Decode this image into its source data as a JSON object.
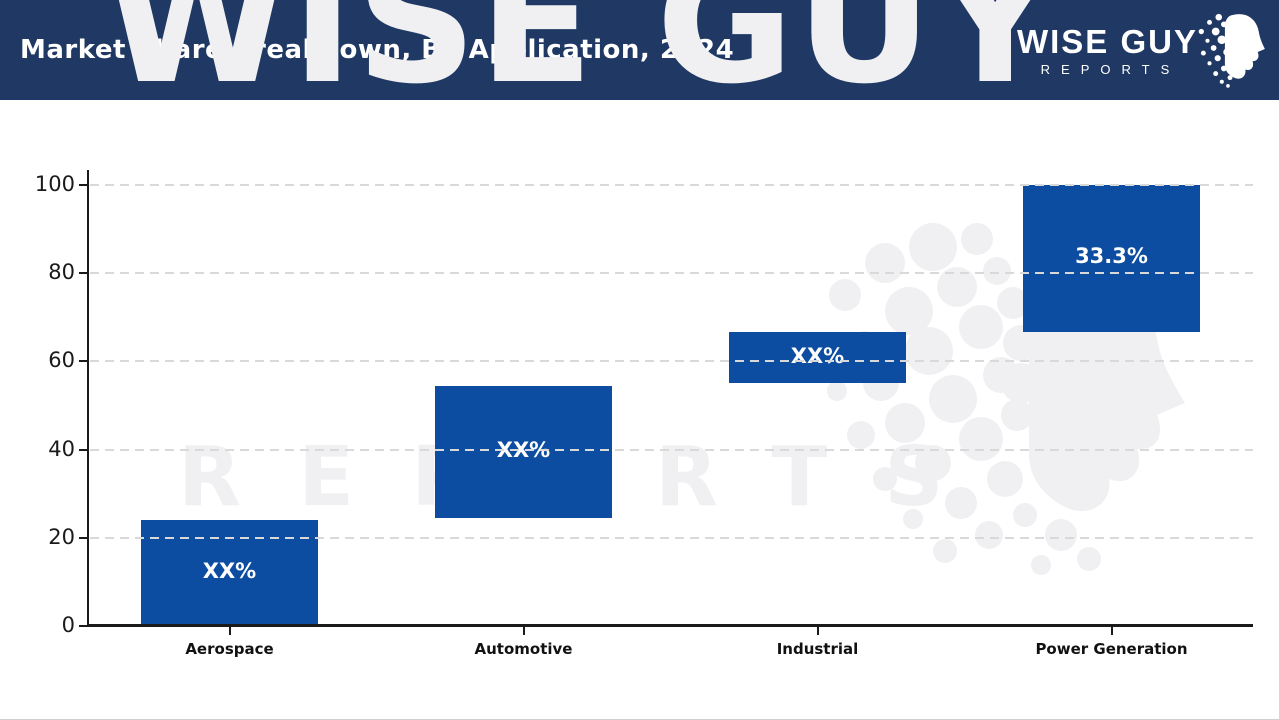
{
  "header": {
    "title": "Market Share Breakdown, By Application, 2024",
    "bg_color": "#1f3864",
    "logo": {
      "line1": "WISE GUY",
      "line2": "REPORTS"
    }
  },
  "watermark": {
    "line1": "WISE GUY",
    "line2": "REPORTS"
  },
  "chart_data": {
    "type": "bar",
    "subtype": "waterfall-stacked-segments",
    "title": "Market Share Breakdown, By Application, 2024",
    "xlabel": "",
    "ylabel": "",
    "categories": [
      "Aerospace",
      "Automotive",
      "Industrial",
      "Power Generation"
    ],
    "segments": [
      {
        "category": "Aerospace",
        "base": 0,
        "top": 24,
        "label": "XX%"
      },
      {
        "category": "Automotive",
        "base": 24.5,
        "top": 54.5,
        "label": "XX%"
      },
      {
        "category": "Industrial",
        "base": 55,
        "top": 66.6,
        "label": "XX%"
      },
      {
        "category": "Power Generation",
        "base": 66.7,
        "top": 100,
        "label": "33.3%"
      }
    ],
    "yticks": [
      0,
      20,
      40,
      60,
      80,
      100
    ],
    "ylim": [
      0,
      103
    ],
    "grid": "horizontal-dashed",
    "legend": "none",
    "bar_color": "#0d4da1",
    "bar_label_color": "#ffffff",
    "grid_color": "#d9d9d9",
    "axis_color": "#1a1a1a"
  }
}
